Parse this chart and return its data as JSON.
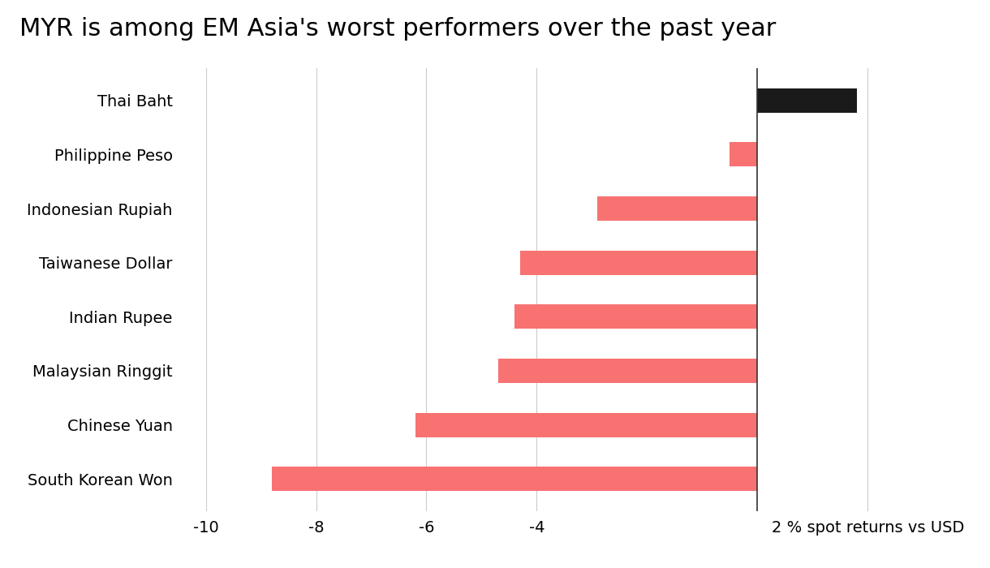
{
  "title": "MYR is among EM Asia's worst performers over the past year",
  "categories": [
    "South Korean Won",
    "Chinese Yuan",
    "Malaysian Ringgit",
    "Indian Rupee",
    "Taiwanese Dollar",
    "Indonesian Rupiah",
    "Philippine Peso",
    "Thai Baht"
  ],
  "values": [
    -8.8,
    -6.2,
    -4.7,
    -4.4,
    -4.3,
    -2.9,
    -0.5,
    1.8
  ],
  "bar_colors": [
    "#f87272",
    "#f87272",
    "#f87272",
    "#f87272",
    "#f87272",
    "#f87272",
    "#f87272",
    "#1a1a1a"
  ],
  "xlim": [
    -10.5,
    3.5
  ],
  "xticks": [
    -10,
    -8,
    -6,
    -4,
    2
  ],
  "xtick_labels": [
    "-10",
    "-8",
    "-6",
    "-4",
    "2 % spot returns vs USD"
  ],
  "background_color": "#ffffff",
  "title_fontsize": 22,
  "tick_fontsize": 14,
  "ytick_fontsize": 14,
  "bar_height": 0.45,
  "grid_color": "#cccccc",
  "vline_x": 0,
  "vline_color": "#333333"
}
